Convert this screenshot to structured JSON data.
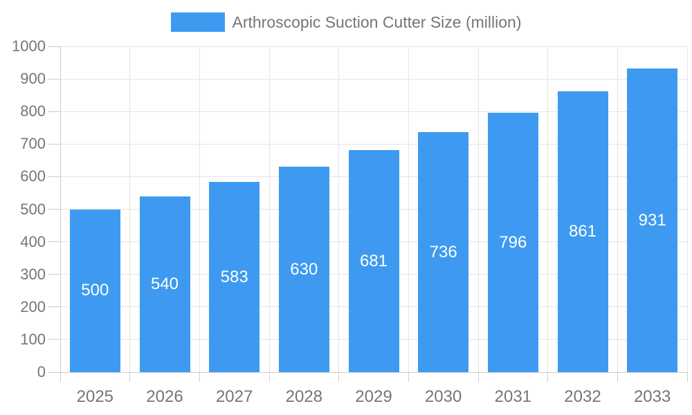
{
  "chart_data": {
    "type": "bar",
    "title": "Arthroscopic Suction Cutter Size (million)",
    "series_name": "Arthroscopic Suction Cutter Size (million)",
    "categories": [
      "2025",
      "2026",
      "2027",
      "2028",
      "2029",
      "2030",
      "2031",
      "2032",
      "2033"
    ],
    "values": [
      500,
      540,
      583,
      630,
      681,
      736,
      796,
      861,
      931
    ],
    "xlabel": "",
    "ylabel": "",
    "ylim": [
      0,
      1000
    ],
    "yticks": [
      0,
      100,
      200,
      300,
      400,
      500,
      600,
      700,
      800,
      900,
      1000
    ],
    "grid": true,
    "legend_position": "top-center",
    "value_labels_inside_bars": true,
    "colors": {
      "bar": "#3E9AF0",
      "value_label_text": "#FFFFFF",
      "axis_text": "#757575",
      "gridline": "#E4E4E4",
      "axis_line": "#CCCCCC",
      "background": "#FFFFFF"
    }
  },
  "legend": {
    "label": "Arthroscopic Suction Cutter Size (million)"
  }
}
